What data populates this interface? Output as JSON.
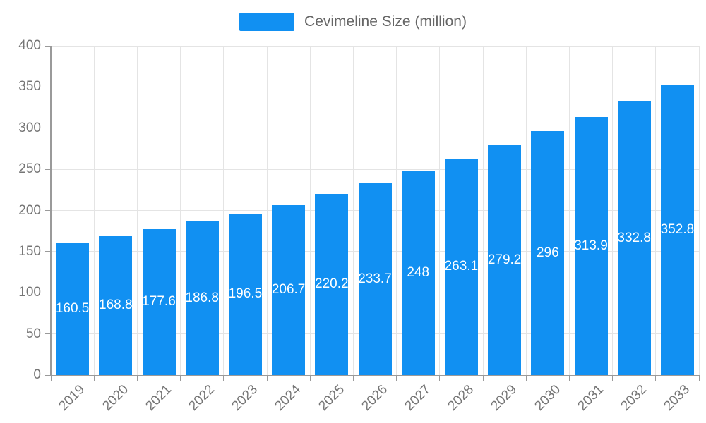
{
  "legend": {
    "label": "Cevimeline Size (million)"
  },
  "colors": {
    "bar": "#1190f2",
    "axis_text": "#757575",
    "legend_text": "#666666",
    "gridline": "#e4e4e4",
    "axis_line": "#9a9a9a",
    "bar_label_text": "#ffffff"
  },
  "chart_data": {
    "type": "bar",
    "title": "Cevimeline Size (million)",
    "categories": [
      "2019",
      "2020",
      "2021",
      "2022",
      "2023",
      "2024",
      "2025",
      "2026",
      "2027",
      "2028",
      "2029",
      "2030",
      "2031",
      "2032",
      "2033"
    ],
    "values": [
      160.5,
      168.8,
      177.6,
      186.8,
      196.5,
      206.7,
      220.2,
      233.7,
      248,
      263.1,
      279.2,
      296,
      313.9,
      332.8,
      352.8
    ],
    "value_labels": [
      "160.5",
      "168.8",
      "177.6",
      "186.8",
      "196.5",
      "206.7",
      "220.2",
      "233.7",
      "248",
      "263.1",
      "279.2",
      "296",
      "313.9",
      "332.8",
      "352.8"
    ],
    "xlabel": "",
    "ylabel": "",
    "ylim": [
      0,
      400
    ],
    "yticks": [
      0,
      50,
      100,
      150,
      200,
      250,
      300,
      350,
      400
    ],
    "ytick_labels": [
      "0",
      "50",
      "100",
      "150",
      "200",
      "250",
      "300",
      "350",
      "400"
    ],
    "grid": true,
    "legend_position": "top-center",
    "bar_label_position": "inside-center",
    "x_label_rotation_deg": -45
  }
}
